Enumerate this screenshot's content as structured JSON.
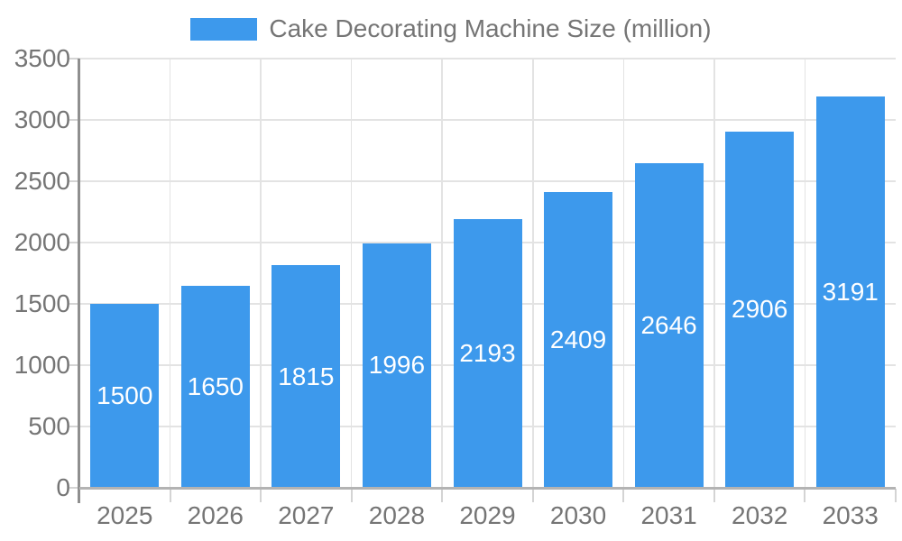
{
  "chart_data": {
    "type": "bar",
    "title": "Cake Decorating Machine Size (million)",
    "legend": [
      "Cake Decorating Machine Size (million)"
    ],
    "legend_position": "top-center",
    "categories": [
      "2025",
      "2026",
      "2027",
      "2028",
      "2029",
      "2030",
      "2031",
      "2032",
      "2033"
    ],
    "series": [
      {
        "name": "Cake Decorating Machine Size (million)",
        "values": [
          1500,
          1650,
          1815,
          1996,
          2193,
          2409,
          2646,
          2906,
          3191
        ]
      }
    ],
    "value_labels_shown": true,
    "xlabel": "",
    "ylabel": "",
    "ylim": [
      0,
      3500
    ],
    "yticks": [
      0,
      500,
      1000,
      1500,
      2000,
      2500,
      3000,
      3500
    ],
    "grid": "horizontal and vertical light gray",
    "colors": {
      "bar": "#3d99ec",
      "value_label_text": "#ffffff",
      "axis_text": "#757575",
      "gridline": "#e3e3e3",
      "y_axis_line": "#8f8f8f",
      "x_axis_line": "#b3b3b3",
      "tick": "#d4d4d4",
      "background": "#ffffff"
    }
  }
}
